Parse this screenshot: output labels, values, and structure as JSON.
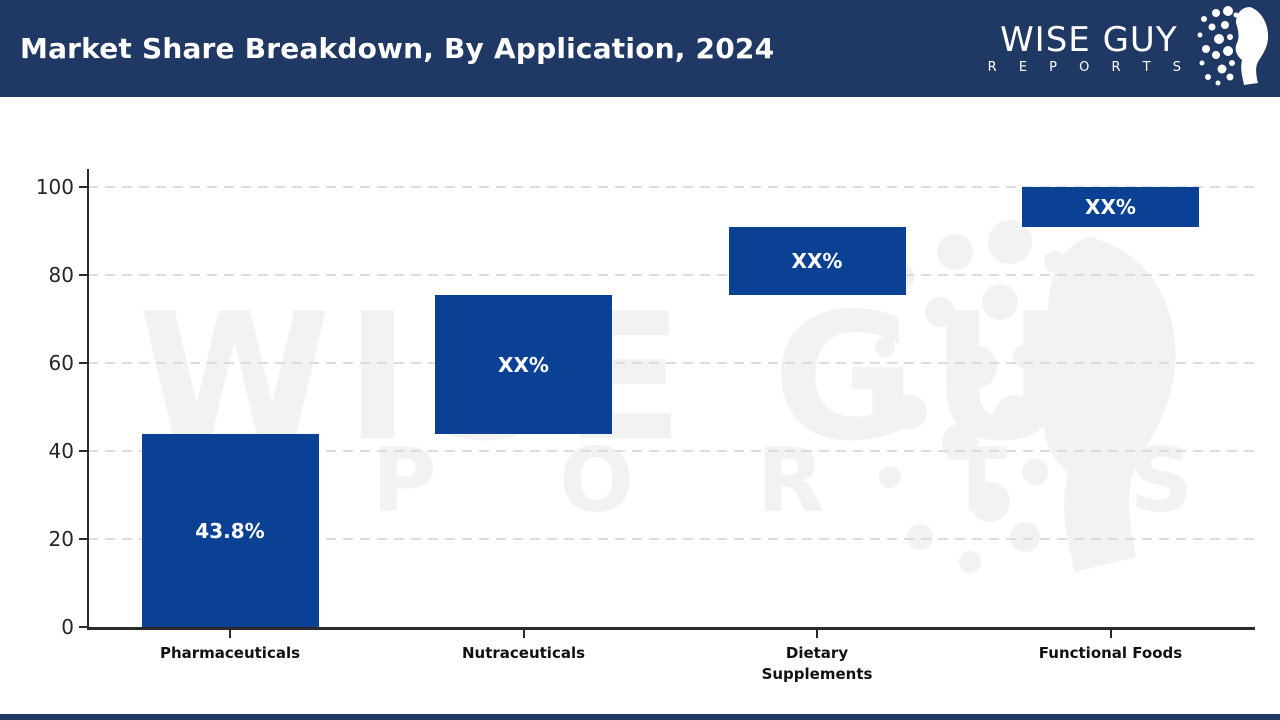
{
  "header": {
    "title": "Market Share Breakdown, By Application, 2024",
    "bg_color": "#1f3864",
    "logo": {
      "line1": "WISE GUY",
      "line2": "R E P O R T S",
      "head_icon": "dotted-head-profile"
    }
  },
  "watermark": {
    "line1": "WISE GU",
    "line2": "P O R T S"
  },
  "chart_data": {
    "type": "bar",
    "subtype": "waterfall",
    "title": "Market Share Breakdown, By Application, 2024",
    "categories": [
      "Pharmaceuticals",
      "Nutraceuticals",
      "Dietary Supplements",
      "Functional Foods"
    ],
    "segments": [
      {
        "category": "Pharmaceuticals",
        "start": 0,
        "end": 43.8,
        "value": 43.8,
        "label": "43.8%"
      },
      {
        "category": "Nutraceuticals",
        "start": 43.8,
        "end": 75.5,
        "value": 31.7,
        "label": "XX%"
      },
      {
        "category": "Dietary Supplements",
        "start": 75.5,
        "end": 91.0,
        "value": 15.5,
        "label": "XX%"
      },
      {
        "category": "Functional Foods",
        "start": 91.0,
        "end": 100.0,
        "value": 9.0,
        "label": "XX%"
      }
    ],
    "xlabel": "",
    "ylabel": "",
    "ylim": [
      0,
      100
    ],
    "yticks": [
      0,
      20,
      40,
      60,
      80,
      100
    ],
    "grid": "horizontal-dashed",
    "legend": "none",
    "bar_color": "#0a4194",
    "bar_label_color": "#ffffff",
    "axis_color": "#2b2b2b",
    "gridline_color": "#dcdcdc"
  }
}
